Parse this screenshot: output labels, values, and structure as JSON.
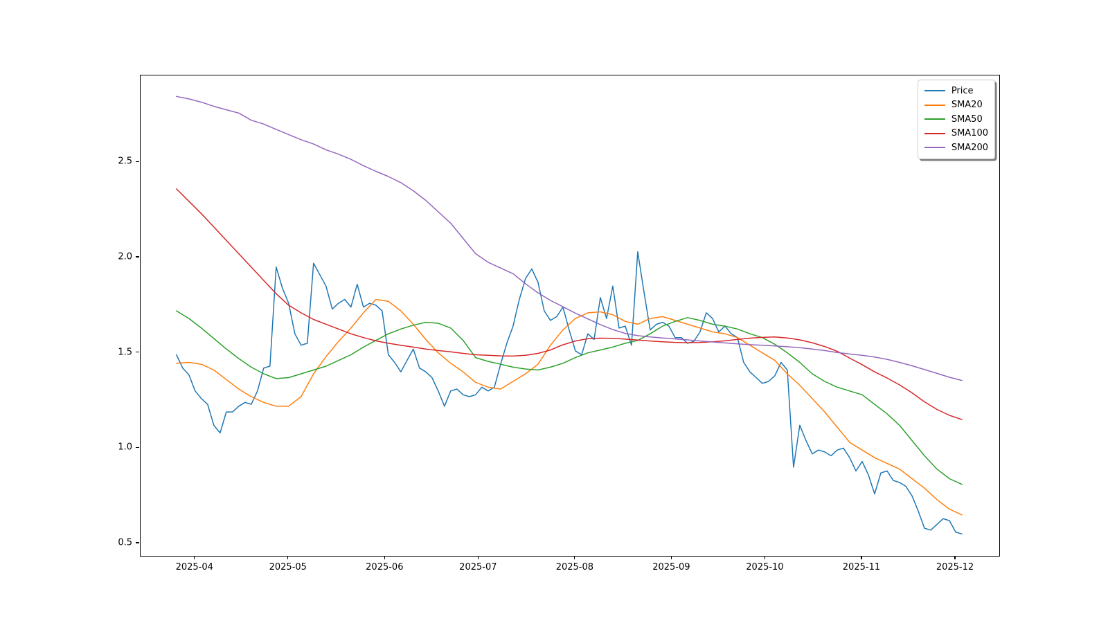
{
  "figure": {
    "background": "#ffffff",
    "spine_color": "#000000",
    "tick_color": "#000000"
  },
  "chart_data": {
    "type": "line",
    "title": "",
    "xlabel": "",
    "ylabel": "",
    "grid": false,
    "x_unit": "days since 2025-04-01",
    "xlim_days": [
      -17.5,
      258.0
    ],
    "ylim": [
      0.435,
      2.955
    ],
    "x_ticks": {
      "days": [
        0,
        30,
        61,
        91,
        122,
        153,
        183,
        214,
        244
      ],
      "labels": [
        "2025-04",
        "2025-05",
        "2025-06",
        "2025-07",
        "2025-08",
        "2025-09",
        "2025-10",
        "2025-11",
        "2025-12"
      ]
    },
    "y_ticks": [
      "0.5",
      "1.0",
      "1.5",
      "2.0",
      "2.5"
    ],
    "y_tick_values": [
      0.5,
      1.0,
      1.5,
      2.0,
      2.5
    ],
    "legend": {
      "position": "upper right"
    },
    "series": [
      {
        "name": "Price",
        "color": "#1f77b4",
        "start_day": -6,
        "step_days": 2,
        "values": [
          1.49,
          1.42,
          1.385,
          1.3,
          1.26,
          1.23,
          1.12,
          1.08,
          1.19,
          1.19,
          1.22,
          1.24,
          1.23,
          1.3,
          1.42,
          1.43,
          1.95,
          1.84,
          1.76,
          1.6,
          1.54,
          1.55,
          1.97,
          1.91,
          1.85,
          1.73,
          1.76,
          1.78,
          1.74,
          1.86,
          1.74,
          1.76,
          1.75,
          1.72,
          1.49,
          1.45,
          1.4,
          1.46,
          1.52,
          1.42,
          1.4,
          1.37,
          1.3,
          1.22,
          1.3,
          1.31,
          1.28,
          1.27,
          1.28,
          1.32,
          1.3,
          1.32,
          1.44,
          1.55,
          1.64,
          1.78,
          1.89,
          1.94,
          1.87,
          1.72,
          1.67,
          1.69,
          1.74,
          1.62,
          1.51,
          1.49,
          1.6,
          1.57,
          1.79,
          1.68,
          1.85,
          1.63,
          1.64,
          1.54,
          2.03,
          1.82,
          1.62,
          1.65,
          1.66,
          1.64,
          1.58,
          1.58,
          1.55,
          1.56,
          1.61,
          1.71,
          1.68,
          1.61,
          1.64,
          1.6,
          1.58,
          1.45,
          1.4,
          1.37,
          1.34,
          1.35,
          1.38,
          1.45,
          1.41,
          0.9,
          1.12,
          1.04,
          0.97,
          0.99,
          0.98,
          0.96,
          0.99,
          1.0,
          0.95,
          0.88,
          0.93,
          0.86,
          0.76,
          0.87,
          0.88,
          0.83,
          0.82,
          0.8,
          0.75,
          0.67,
          0.58,
          0.57,
          0.6,
          0.63,
          0.62,
          0.56,
          0.55
        ]
      },
      {
        "name": "SMA20",
        "color": "#ff7f0e",
        "start_day": -6,
        "step_days": 4,
        "values": [
          1.445,
          1.45,
          1.44,
          1.41,
          1.36,
          1.31,
          1.27,
          1.24,
          1.22,
          1.22,
          1.27,
          1.39,
          1.48,
          1.56,
          1.63,
          1.71,
          1.78,
          1.77,
          1.72,
          1.65,
          1.57,
          1.5,
          1.445,
          1.4,
          1.345,
          1.32,
          1.31,
          1.35,
          1.39,
          1.44,
          1.54,
          1.62,
          1.68,
          1.71,
          1.715,
          1.7,
          1.665,
          1.65,
          1.68,
          1.69,
          1.67,
          1.65,
          1.63,
          1.61,
          1.6,
          1.58,
          1.54,
          1.5,
          1.46,
          1.39,
          1.33,
          1.26,
          1.19,
          1.11,
          1.03,
          0.99,
          0.95,
          0.92,
          0.89,
          0.84,
          0.79,
          0.73,
          0.68,
          0.65
        ]
      },
      {
        "name": "SMA50",
        "color": "#2ca02c",
        "start_day": -6,
        "step_days": 4,
        "values": [
          1.72,
          1.68,
          1.63,
          1.575,
          1.52,
          1.47,
          1.425,
          1.39,
          1.365,
          1.37,
          1.39,
          1.41,
          1.43,
          1.46,
          1.49,
          1.53,
          1.565,
          1.6,
          1.625,
          1.645,
          1.66,
          1.655,
          1.63,
          1.565,
          1.475,
          1.455,
          1.44,
          1.425,
          1.415,
          1.41,
          1.425,
          1.445,
          1.475,
          1.5,
          1.515,
          1.53,
          1.55,
          1.565,
          1.6,
          1.64,
          1.665,
          1.685,
          1.67,
          1.65,
          1.64,
          1.625,
          1.6,
          1.58,
          1.545,
          1.5,
          1.45,
          1.39,
          1.35,
          1.32,
          1.3,
          1.28,
          1.23,
          1.18,
          1.12,
          1.04,
          0.96,
          0.89,
          0.84,
          0.81
        ]
      },
      {
        "name": "SMA100",
        "color": "#d62728",
        "start_day": -6,
        "step_days": 4,
        "values": [
          2.36,
          2.295,
          2.23,
          2.16,
          2.09,
          2.02,
          1.95,
          1.88,
          1.81,
          1.75,
          1.71,
          1.675,
          1.65,
          1.625,
          1.6,
          1.58,
          1.563,
          1.55,
          1.54,
          1.53,
          1.52,
          1.512,
          1.505,
          1.497,
          1.49,
          1.487,
          1.484,
          1.483,
          1.487,
          1.497,
          1.515,
          1.542,
          1.562,
          1.574,
          1.577,
          1.576,
          1.572,
          1.567,
          1.562,
          1.558,
          1.555,
          1.553,
          1.554,
          1.558,
          1.563,
          1.57,
          1.577,
          1.581,
          1.583,
          1.578,
          1.568,
          1.553,
          1.533,
          1.508,
          1.472,
          1.438,
          1.4,
          1.368,
          1.332,
          1.29,
          1.243,
          1.203,
          1.172,
          1.15
        ]
      },
      {
        "name": "SMA200",
        "color": "#9467bd",
        "start_day": -6,
        "step_days": 4,
        "values": [
          2.845,
          2.832,
          2.815,
          2.793,
          2.775,
          2.758,
          2.72,
          2.7,
          2.672,
          2.645,
          2.618,
          2.595,
          2.565,
          2.542,
          2.515,
          2.482,
          2.452,
          2.425,
          2.393,
          2.35,
          2.3,
          2.24,
          2.18,
          2.1,
          2.02,
          1.975,
          1.945,
          1.915,
          1.862,
          1.815,
          1.775,
          1.742,
          1.708,
          1.678,
          1.648,
          1.622,
          1.602,
          1.59,
          1.583,
          1.578,
          1.573,
          1.568,
          1.562,
          1.557,
          1.552,
          1.547,
          1.543,
          1.54,
          1.536,
          1.532,
          1.527,
          1.52,
          1.512,
          1.502,
          1.494,
          1.487,
          1.478,
          1.466,
          1.45,
          1.432,
          1.412,
          1.392,
          1.372,
          1.355
        ]
      }
    ]
  }
}
